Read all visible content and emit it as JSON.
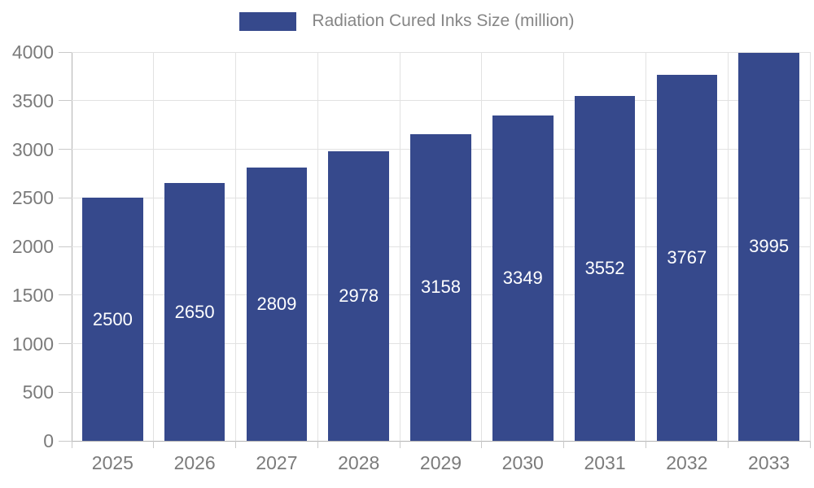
{
  "legend": {
    "label": "Radiation Cured Inks Size (million)"
  },
  "colors": {
    "bar": "#36498C",
    "axis_line": "#b3b3b3",
    "gridline": "#e2e2e2",
    "tick": "#c9c9c9",
    "axis_text": "#7b7b7b",
    "legend_text": "#868686",
    "value_text": "#ffffff",
    "background": "#ffffff"
  },
  "chart_data": {
    "type": "bar",
    "title": "",
    "legend_entries": [
      "Radiation Cured Inks Size (million)"
    ],
    "legend_position": "top-center",
    "categories": [
      "2025",
      "2026",
      "2027",
      "2028",
      "2029",
      "2030",
      "2031",
      "2032",
      "2033"
    ],
    "values": [
      2500,
      2650,
      2809,
      2978,
      3158,
      3349,
      3552,
      3767,
      3995
    ],
    "series_name": "Radiation Cured Inks Size (million)",
    "xlabel": "",
    "ylabel": "",
    "ylim": [
      0,
      4000
    ],
    "yticks": [
      0,
      500,
      1000,
      1500,
      2000,
      2500,
      3000,
      3500,
      4000
    ],
    "grid": true,
    "value_labels": "inside-middle"
  }
}
